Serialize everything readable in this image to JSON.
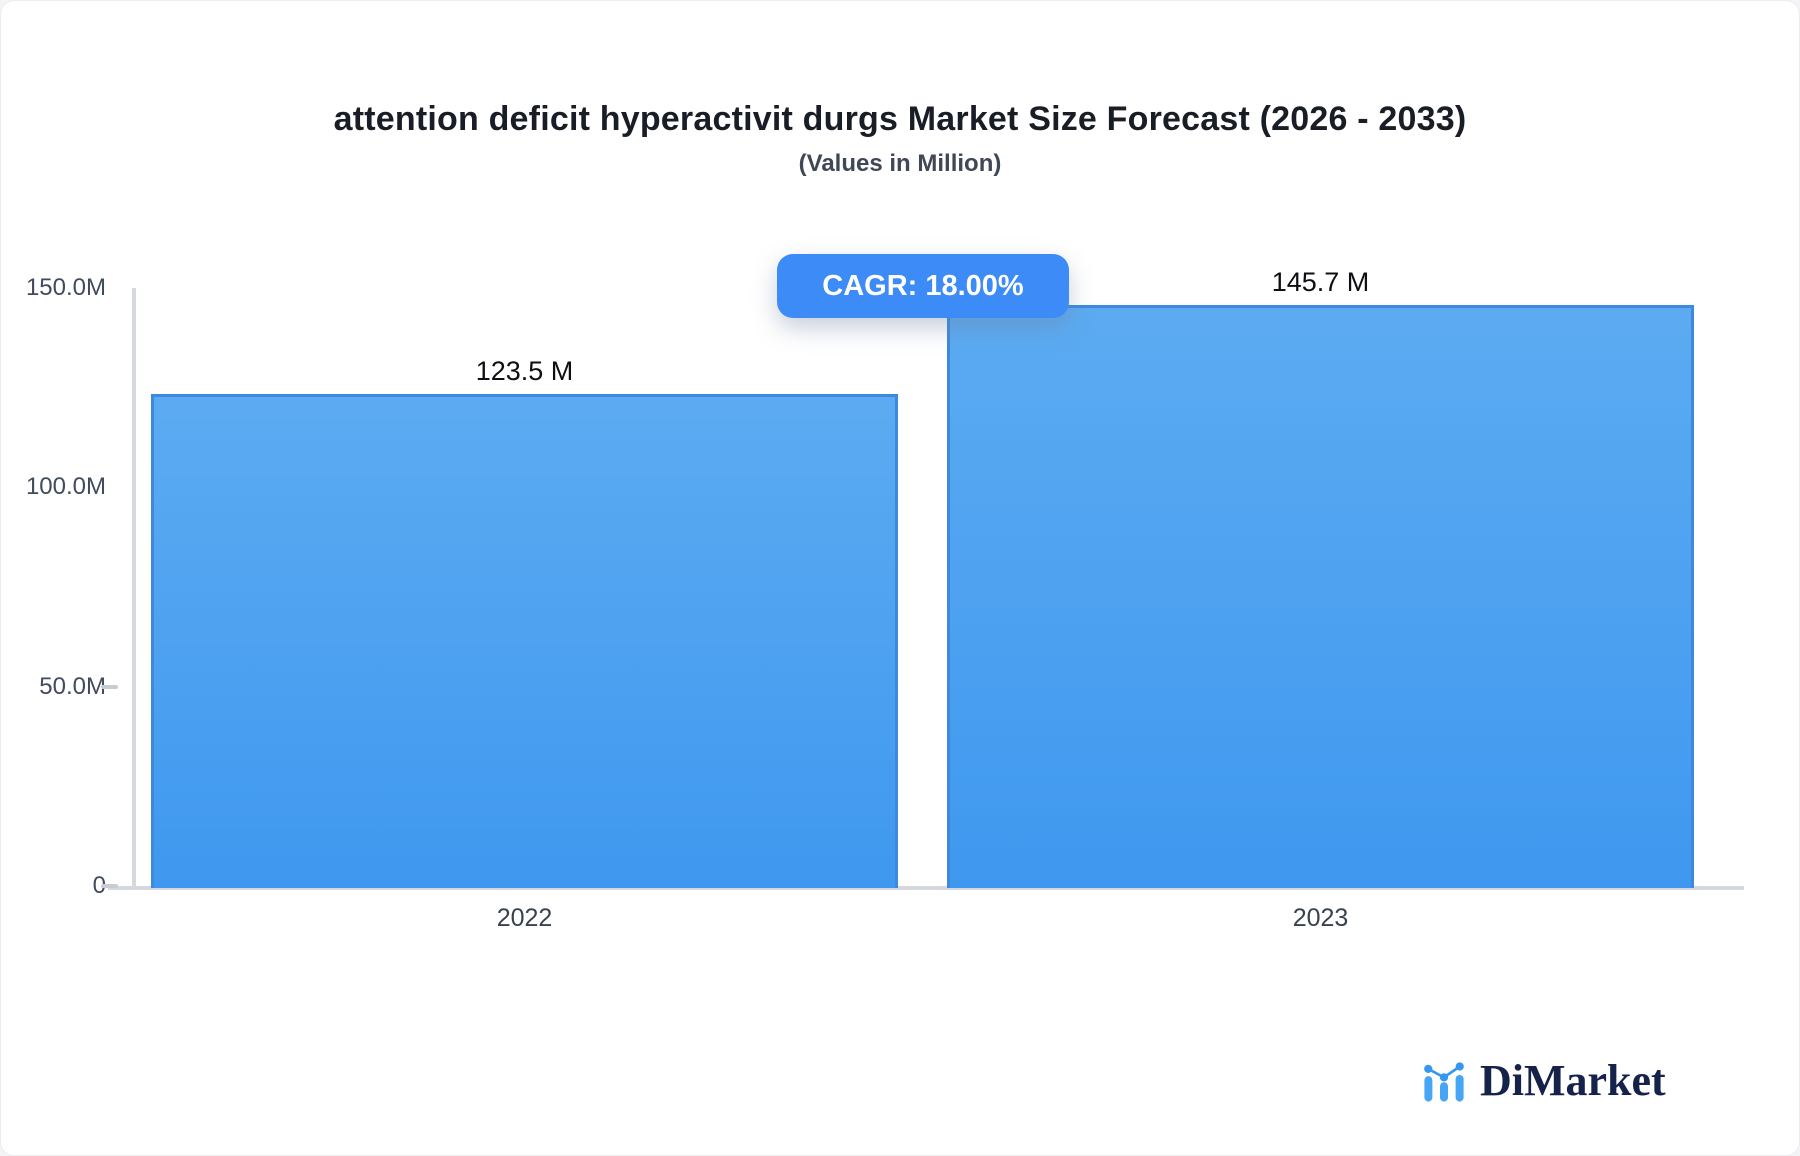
{
  "header": {
    "title": "attention deficit hyperactivit durgs Market Size Forecast (2026 - 2033)",
    "subtitle": "(Values in Million)"
  },
  "badge": {
    "label": "CAGR: 18.00%",
    "bg_color": "#3d8bf6",
    "text_color": "#ffffff"
  },
  "chart_data": {
    "type": "bar",
    "categories": [
      "2022",
      "2023"
    ],
    "values": [
      123.5,
      145.7
    ],
    "value_labels": [
      "123.5 M",
      "145.7 M"
    ],
    "title": "attention deficit hyperactivit durgs Market Size Forecast (2026 - 2033)",
    "subtitle": "(Values in Million)",
    "xlabel": "",
    "ylabel": "",
    "unit": "Million",
    "ylim": [
      0,
      150
    ],
    "yticks": [
      {
        "label": "150.0M",
        "value": 150,
        "dash": false
      },
      {
        "label": "100.0M",
        "value": 100,
        "dash": false
      },
      {
        "label": "50.0M",
        "value": 50,
        "dash": true
      },
      {
        "label": "0",
        "value": 0,
        "dash": true
      }
    ],
    "grid": false,
    "legend": false,
    "colors": {
      "bar_fill_top": "#5cabf2",
      "bar_fill_bottom": "#3f98ef",
      "bar_border": "#3d89de",
      "axis_line": "#d5d8de",
      "tick_label": "#3f4b5e"
    }
  },
  "branding": {
    "logo_text": "DiMarket",
    "logo_icon": "mini-bar-line-chart-icon",
    "logo_text_color": "#15224a",
    "logo_bar_color": "#47a5f5",
    "logo_dot_color": "#3498f3"
  }
}
